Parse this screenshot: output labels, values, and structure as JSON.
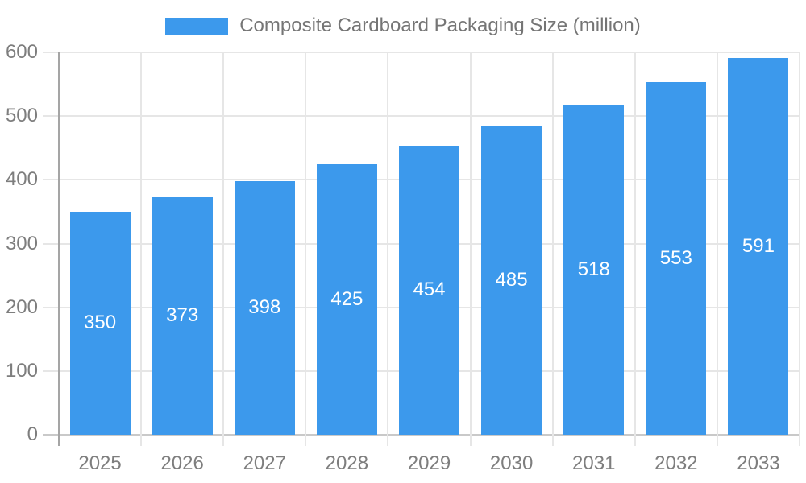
{
  "chart_data": {
    "type": "bar",
    "title": "Composite Cardboard Packaging Size (million)",
    "categories": [
      "2025",
      "2026",
      "2027",
      "2028",
      "2029",
      "2030",
      "2031",
      "2032",
      "2033"
    ],
    "values": [
      350,
      373,
      398,
      425,
      454,
      485,
      518,
      553,
      591
    ],
    "xlabel": "",
    "ylabel": "",
    "ylim": [
      0,
      600
    ],
    "yticks": [
      0,
      100,
      200,
      300,
      400,
      500,
      600
    ],
    "grid": true,
    "legend_position": "top",
    "bar_labels_inside": true,
    "colors": {
      "bar": "#3C99EC",
      "bar_label": "#FFFFFF",
      "grid": "#E6E6E6",
      "axis": "#A5A5A5",
      "baseline": "#C9C9C9",
      "tick_label": "#7E7E7E",
      "legend_text": "#757575",
      "background": "#FFFFFF"
    }
  }
}
